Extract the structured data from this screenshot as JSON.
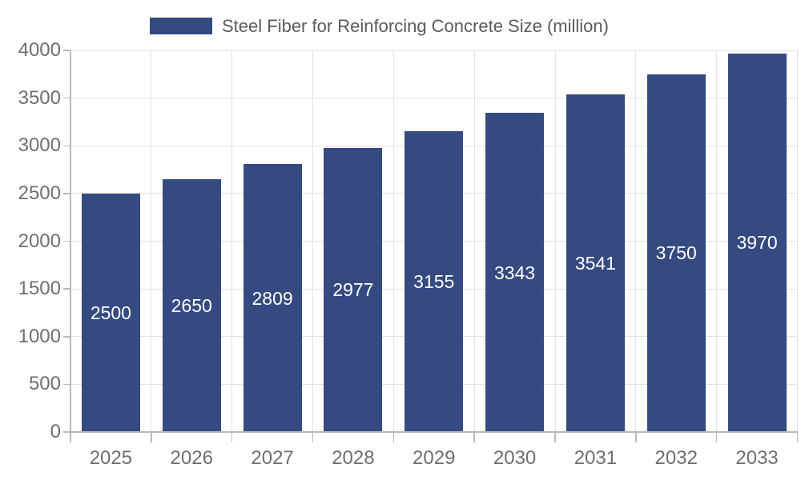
{
  "legend": {
    "label": "Steel Fiber for Reinforcing Concrete Size (million)"
  },
  "chart_data": {
    "type": "bar",
    "series_name": "Steel Fiber for Reinforcing Concrete Size (million)",
    "categories": [
      "2025",
      "2026",
      "2027",
      "2028",
      "2029",
      "2030",
      "2031",
      "2032",
      "2033"
    ],
    "values": [
      2500,
      2650,
      2809,
      2977,
      3155,
      3343,
      3541,
      3750,
      3970
    ],
    "value_labels": [
      "2500",
      "2650",
      "2809",
      "2977",
      "3155",
      "3343",
      "3541",
      "3750",
      "3970"
    ],
    "ylim": [
      0,
      4000
    ],
    "y_ticks": [
      0,
      500,
      1000,
      1500,
      2000,
      2500,
      3000,
      3500,
      4000
    ],
    "y_tick_labels": [
      "0",
      "500",
      "1000",
      "1500",
      "2000",
      "2500",
      "3000",
      "3500",
      "4000"
    ],
    "grid": true,
    "legend_position": "top",
    "xlabel": "",
    "ylabel": "",
    "title": ""
  },
  "colors": {
    "bar": "#354A80",
    "value_label": "#FFFFFF",
    "grid": "#E2E2E2",
    "axis": "#B9B9B9",
    "axis_text": "#6E6E6E",
    "legend_text": "#5A5A5A",
    "background": "#FFFFFF"
  }
}
